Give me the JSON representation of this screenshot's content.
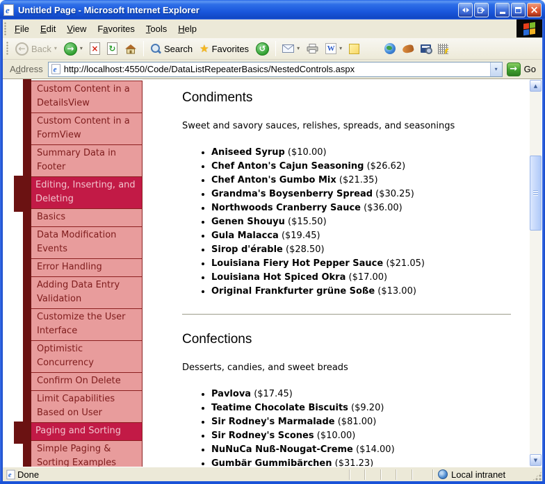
{
  "window": {
    "title": "Untitled Page - Microsoft Internet Explorer"
  },
  "menu_bar": {
    "items": [
      {
        "label": "File",
        "underline": 0
      },
      {
        "label": "Edit",
        "underline": 0
      },
      {
        "label": "View",
        "underline": 0
      },
      {
        "label": "Favorites",
        "underline": 1
      },
      {
        "label": "Tools",
        "underline": 0
      },
      {
        "label": "Help",
        "underline": 0
      }
    ]
  },
  "toolbar": {
    "back": "Back",
    "search": "Search",
    "favorites": "Favorites"
  },
  "address_bar": {
    "label": "Address",
    "underline": 1,
    "url": "http://localhost:4550/Code/DataListRepeaterBasics/NestedControls.aspx",
    "go": "Go"
  },
  "sidebar": {
    "items": [
      {
        "label": "Custom Content in a DetailsView",
        "header": false
      },
      {
        "label": "Custom Content in a FormView",
        "header": false
      },
      {
        "label": "Summary Data in Footer",
        "header": false
      },
      {
        "label": "Editing, Inserting, and Deleting",
        "header": true
      },
      {
        "label": "Basics",
        "header": false
      },
      {
        "label": "Data Modification Events",
        "header": false
      },
      {
        "label": "Error Handling",
        "header": false
      },
      {
        "label": "Adding Data Entry Validation",
        "header": false
      },
      {
        "label": "Customize the User Interface",
        "header": false
      },
      {
        "label": "Optimistic Concurrency",
        "header": false
      },
      {
        "label": "Confirm On Delete",
        "header": false
      },
      {
        "label": "Limit Capabilities Based on User",
        "header": false
      },
      {
        "label": "Paging and Sorting",
        "header": true
      },
      {
        "label": "Simple Paging & Sorting Examples",
        "header": false
      }
    ]
  },
  "content": {
    "sections": [
      {
        "title": "Condiments",
        "description": "Sweet and savory sauces, relishes, spreads, and seasonings",
        "products": [
          {
            "name": "Aniseed Syrup",
            "price": "($10.00)"
          },
          {
            "name": "Chef Anton's Cajun Seasoning",
            "price": "($26.62)"
          },
          {
            "name": "Chef Anton's Gumbo Mix",
            "price": "($21.35)"
          },
          {
            "name": "Grandma's Boysenberry Spread",
            "price": "($30.25)"
          },
          {
            "name": "Northwoods Cranberry Sauce",
            "price": "($36.00)"
          },
          {
            "name": "Genen Shouyu",
            "price": "($15.50)"
          },
          {
            "name": "Gula Malacca",
            "price": "($19.45)"
          },
          {
            "name": "Sirop d'érable",
            "price": "($28.50)"
          },
          {
            "name": "Louisiana Fiery Hot Pepper Sauce",
            "price": "($21.05)"
          },
          {
            "name": "Louisiana Hot Spiced Okra",
            "price": "($17.00)"
          },
          {
            "name": "Original Frankfurter grüne Soße",
            "price": "($13.00)"
          }
        ]
      },
      {
        "title": "Confections",
        "description": "Desserts, candies, and sweet breads",
        "products": [
          {
            "name": "Pavlova",
            "price": "($17.45)"
          },
          {
            "name": "Teatime Chocolate Biscuits",
            "price": "($9.20)"
          },
          {
            "name": "Sir Rodney's Marmalade",
            "price": "($81.00)"
          },
          {
            "name": "Sir Rodney's Scones",
            "price": "($10.00)"
          },
          {
            "name": "NuNuCa Nuß-Nougat-Creme",
            "price": "($14.00)"
          },
          {
            "name": "Gumbär Gummibärchen",
            "price": "($31.23)"
          }
        ]
      }
    ]
  },
  "status_bar": {
    "status": "Done",
    "zone": "Local intranet"
  },
  "icons": {
    "caret": "▾",
    "back_arrow": "←",
    "forward_arrow": "→",
    "stop": "×",
    "refresh": "↻",
    "history": "↺",
    "star": "★",
    "word": "W",
    "go_arrow": "→",
    "scroll_up": "▲",
    "scroll_down": "▼",
    "close": "×",
    "ie_e": "e"
  },
  "colors": {
    "titlebar_blue": "#1A53D8",
    "chrome_tan": "#ECE9D8",
    "sidebar_maroon": "#6B1212",
    "sidebar_pink": "#E89C9C",
    "sidebar_pink_text": "#7E1C1C",
    "sidebar_selected": "#C21A46",
    "sidebar_selected_text": "#F2C3CD"
  }
}
